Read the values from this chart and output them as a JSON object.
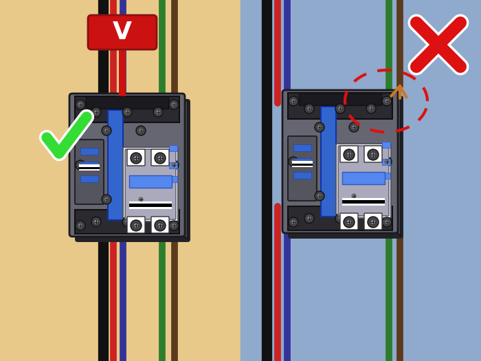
{
  "bg_left": "#E8C98A",
  "bg_right": "#8FAACC",
  "wire_colors": [
    "#111111",
    "#CC2222",
    "#333399",
    "#2D7D2D",
    "#5C3A1E"
  ],
  "check_color": "#33DD33",
  "x_color": "#DD1111",
  "v_bg": "#CC1111",
  "dashed_circle_color": "#DD1111",
  "body_color": "#666672",
  "body_dark": "#3A3A42",
  "body_edge": "#1A1A20",
  "screw_outer": "#444448",
  "screw_inner": "#888890",
  "blue_bar": "#3366CC",
  "blue_light": "#5588EE",
  "module_gray": "#AAAABC",
  "module_white": "#DDDDEE",
  "terminal_top_color": "#2A2A30",
  "orange_wire": "#CC7722"
}
